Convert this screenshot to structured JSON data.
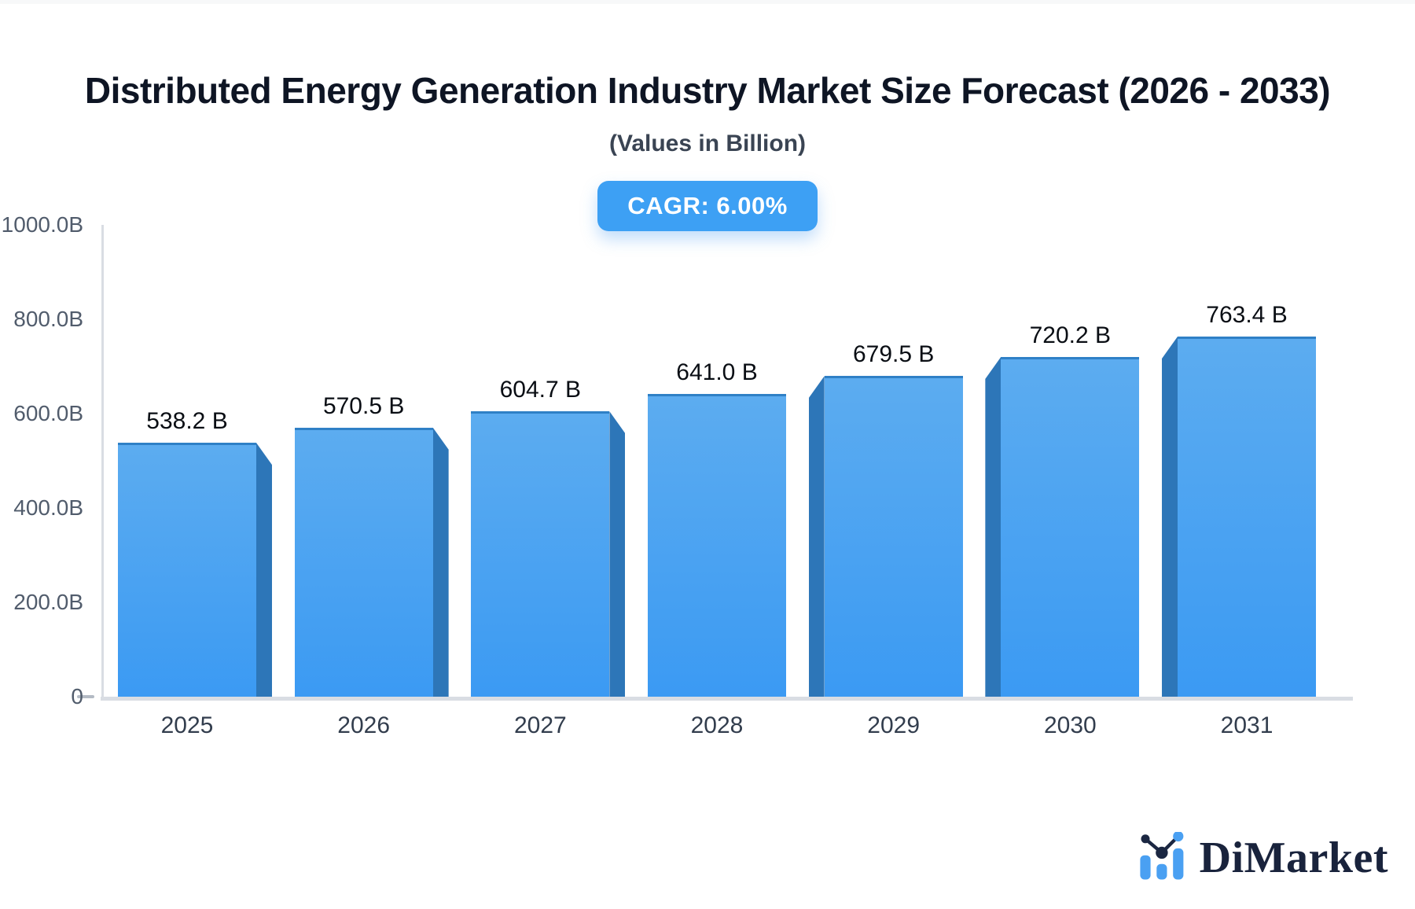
{
  "title": "Distributed Energy Generation Industry Market Size Forecast (2026 - 2033)",
  "subtitle": "(Values in Billion)",
  "badge": {
    "label": "CAGR: 6.00%",
    "bg_color": "#3da0f4",
    "text_color": "#ffffff"
  },
  "chart_data": {
    "type": "bar",
    "categories": [
      "2025",
      "2026",
      "2027",
      "2028",
      "2029",
      "2030",
      "2031"
    ],
    "values": [
      538.2,
      570.5,
      604.7,
      641.0,
      679.5,
      720.2,
      763.4
    ],
    "value_labels": [
      "538.2 B",
      "570.5 B",
      "604.7 B",
      "641.0 B",
      "679.5 B",
      "720.2 B",
      "763.4 B"
    ],
    "y_ticks": [
      {
        "value": 1000,
        "label": "1000.0B"
      },
      {
        "value": 800,
        "label": "800.0B"
      },
      {
        "value": 600,
        "label": "600.0B"
      },
      {
        "value": 400,
        "label": "400.0B"
      },
      {
        "value": 200,
        "label": "200.0B"
      },
      {
        "value": 0,
        "label": "0"
      }
    ],
    "ylim": [
      0,
      1000
    ],
    "unit": "Billion",
    "grid": false,
    "legend": false,
    "bar_color_top": "#5cacf0",
    "bar_color_bottom": "#3b9af3",
    "bar_edge_color": "#2f80c6",
    "bar_side_color": "#2d76b8",
    "axis_color": "#d9dde3"
  },
  "logo": {
    "text": "DiMarket",
    "icon": "bar-chart-logo-icon",
    "accent_color": "#4aa0f2",
    "navy_color": "#1b2742"
  }
}
